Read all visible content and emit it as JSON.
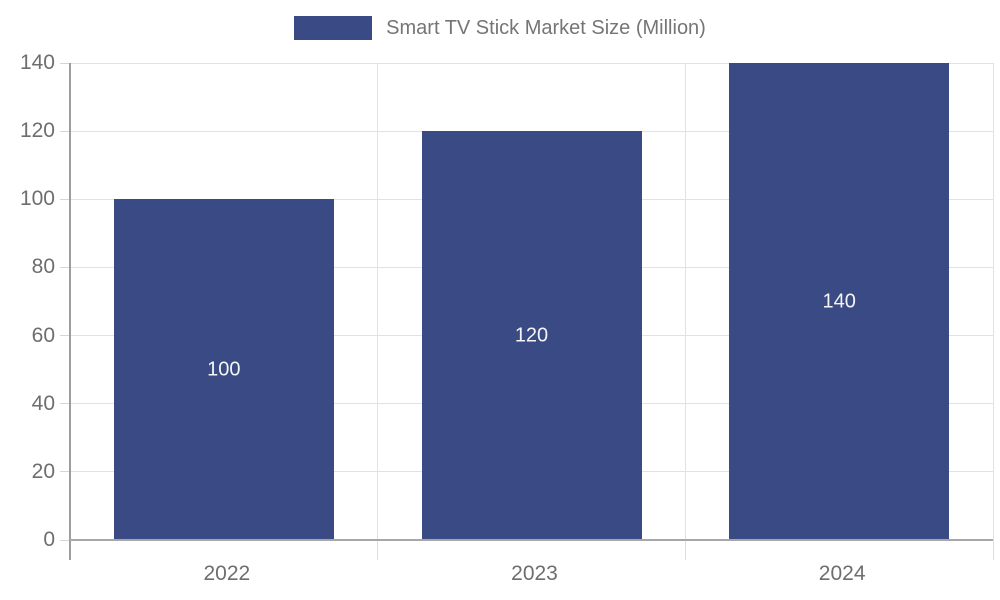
{
  "legend": {
    "label": "Smart TV Stick Market Size (Million)"
  },
  "chart_data": {
    "type": "bar",
    "title": "Smart TV Stick Market Size (Million)",
    "categories": [
      "2022",
      "2023",
      "2024"
    ],
    "values": [
      100,
      120,
      140
    ],
    "bar_labels": [
      "100",
      "120",
      "140"
    ],
    "xlabel": "",
    "ylabel": "",
    "ylim": [
      0,
      140
    ],
    "yticks": [
      0,
      20,
      40,
      60,
      80,
      100,
      120,
      140
    ],
    "grid": true,
    "legend_position": "top-center",
    "colors": {
      "bar": "#3a4a84",
      "grid": "#e2e2e2",
      "axis": "#9e9e9e",
      "tick_label": "#6e6e6e",
      "bar_label": "#f5f5f5",
      "legend_text": "#757575",
      "background": "#ffffff"
    }
  }
}
